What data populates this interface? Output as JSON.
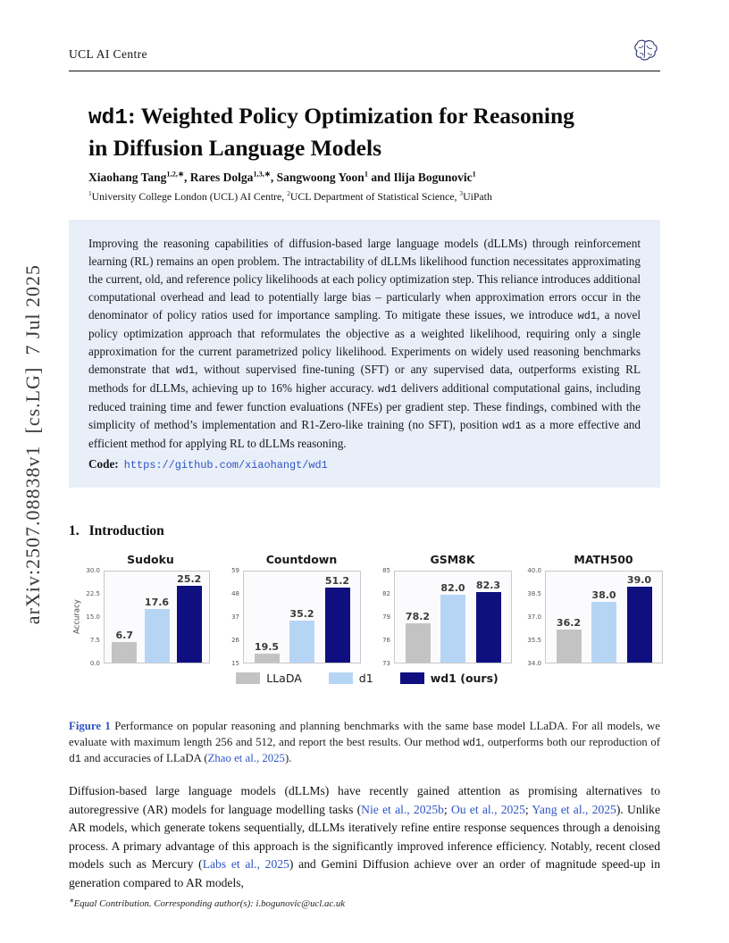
{
  "colors": {
    "link": "#2e54c4",
    "abstract-bg": "#e9eff8",
    "bar-gray": "#c3c3c3",
    "bar-lightblue": "#b6d5f5",
    "bar-navy": "#0f0f80"
  },
  "header": {
    "institute": "UCL AI Centre",
    "logo_icon": "brain-sketch-icon"
  },
  "arxiv": {
    "label": "arXiv:2507.08838v1  [cs.LG]  7 Jul 2025"
  },
  "title": {
    "segments": [
      {
        "text": "wd1",
        "style": "codebold"
      },
      {
        "text": ": Weighted Policy Optimization for Reasoning in Diffusion Language Models",
        "style": "t"
      }
    ]
  },
  "authors": {
    "segments": [
      {
        "text": "Xiaohang Tang",
        "style": "b"
      },
      {
        "text": "1,2,∗",
        "style": "bsup"
      },
      {
        "text": ", ",
        "style": "b"
      },
      {
        "text": "Rares Dolga",
        "style": "b"
      },
      {
        "text": "1,3,∗",
        "style": "bsup"
      },
      {
        "text": ", ",
        "style": "b"
      },
      {
        "text": "Sangwoong Yoon",
        "style": "b"
      },
      {
        "text": "1",
        "style": "bsup"
      },
      {
        "text": " and ",
        "style": "b"
      },
      {
        "text": "Ilija Bogunovic",
        "style": "b"
      },
      {
        "text": "1",
        "style": "bsup"
      }
    ]
  },
  "affiliations": {
    "segments": [
      {
        "text": "1",
        "style": "sup"
      },
      {
        "text": "University College London (UCL) AI Centre, ",
        "style": "t"
      },
      {
        "text": "2",
        "style": "sup"
      },
      {
        "text": "UCL Department of Statistical Science, ",
        "style": "t"
      },
      {
        "text": "3",
        "style": "sup"
      },
      {
        "text": "UiPath",
        "style": "t"
      }
    ]
  },
  "abstract": {
    "segments": [
      {
        "text": "Improving the reasoning capabilities of diffusion-based large language models (dLLMs) through reinforcement learning (RL) remains an open problem. The intractability of dLLMs likelihood function necessitates approximating the current, old, and reference policy likelihoods at each policy optimization step. This reliance introduces additional computational overhead and lead to potentially large bias – particularly when approximation errors occur in the denominator of policy ratios used for importance sampling. To mitigate these issues, we introduce ",
        "style": "t"
      },
      {
        "text": "wd1",
        "style": "code"
      },
      {
        "text": ", a novel policy optimization approach that reformulates the objective as a weighted likelihood, requiring only a single approximation for the current parametrized policy likelihood. Experiments on widely used reasoning benchmarks demonstrate that ",
        "style": "t"
      },
      {
        "text": "wd1",
        "style": "code"
      },
      {
        "text": ", without supervised fine-tuning (SFT) or any supervised data, outperforms existing RL methods for dLLMs, achieving up to 16% higher accuracy. ",
        "style": "t"
      },
      {
        "text": "wd1",
        "style": "code"
      },
      {
        "text": " delivers additional computational gains, including reduced training time and fewer function evaluations (NFEs) per gradient step. These findings, combined with the simplicity of method’s implementation and R1-Zero-like training (no SFT), position ",
        "style": "t"
      },
      {
        "text": "wd1",
        "style": "code"
      },
      {
        "text": " as a more effective and efficient method for applying RL to dLLMs reasoning.",
        "style": "t"
      }
    ],
    "code_label": "Code:",
    "code_url": "https://github.com/xiaohangt/wd1"
  },
  "section": {
    "number": "1.",
    "title": "Introduction"
  },
  "figure": {
    "ylabel": "Accuracy",
    "series_colors": [
      "#c3c3c3",
      "#b6d5f5",
      "#0f0f80"
    ],
    "legend": [
      {
        "label": "LLaDA",
        "color": "#c3c3c3",
        "bold": false
      },
      {
        "label": "d1",
        "color": "#b6d5f5",
        "bold": false
      },
      {
        "label": "wd1 (ours)",
        "color": "#0f0f80",
        "bold": true
      }
    ]
  },
  "chart_data": [
    {
      "type": "bar",
      "title": "Sudoku",
      "categories": [
        "LLaDA",
        "d1",
        "wd1 (ours)"
      ],
      "values": [
        6.7,
        17.6,
        25.2
      ],
      "ylim": [
        0,
        30
      ],
      "yticks": [
        0.0,
        7.5,
        15.0,
        22.5,
        30.0
      ],
      "ytick_decimals": 1,
      "ylabel": "Accuracy",
      "grid": false,
      "legend_position": "bottom"
    },
    {
      "type": "bar",
      "title": "Countdown",
      "categories": [
        "LLaDA",
        "d1",
        "wd1 (ours)"
      ],
      "values": [
        19.5,
        35.2,
        51.2
      ],
      "ylim": [
        15,
        59
      ],
      "yticks": [
        15,
        26,
        37,
        48,
        59
      ],
      "ytick_decimals": 0,
      "grid": false
    },
    {
      "type": "bar",
      "title": "GSM8K",
      "categories": [
        "LLaDA",
        "d1",
        "wd1 (ours)"
      ],
      "values": [
        78.2,
        82.0,
        82.3
      ],
      "ylim": [
        73,
        85
      ],
      "yticks": [
        73,
        76,
        79,
        82,
        85
      ],
      "ytick_decimals": 0,
      "grid": false
    },
    {
      "type": "bar",
      "title": "MATH500",
      "categories": [
        "LLaDA",
        "d1",
        "wd1 (ours)"
      ],
      "values": [
        36.2,
        38.0,
        39.0
      ],
      "ylim": [
        34,
        40
      ],
      "yticks": [
        34.0,
        35.5,
        37.0,
        38.5,
        40.0
      ],
      "ytick_decimals": 1,
      "grid": false
    }
  ],
  "caption": {
    "segments": [
      {
        "text": "Figure 1",
        "style": "figlabel"
      },
      {
        "text": "  Performance on popular reasoning and planning benchmarks with the same base model LLaDA. For all models, we evaluate with maximum length 256 and 512, and report the best results. Our method ",
        "style": "t"
      },
      {
        "text": "wd1",
        "style": "code"
      },
      {
        "text": ", outperforms both our reproduction of ",
        "style": "t"
      },
      {
        "text": "d1",
        "style": "code"
      },
      {
        "text": " and accuracies of LLaDA (",
        "style": "t"
      },
      {
        "text": "Zhao et al., 2025",
        "style": "link"
      },
      {
        "text": ").",
        "style": "t"
      }
    ]
  },
  "body": {
    "segments": [
      {
        "text": "Diffusion-based large language models (dLLMs) have recently gained attention as promising alternatives to autoregressive (AR) models for language modelling tasks (",
        "style": "t"
      },
      {
        "text": "Nie et al., 2025b",
        "style": "link"
      },
      {
        "text": "; ",
        "style": "t"
      },
      {
        "text": "Ou et al., 2025",
        "style": "link"
      },
      {
        "text": "; ",
        "style": "t"
      },
      {
        "text": "Yang et al., 2025",
        "style": "link"
      },
      {
        "text": "). Unlike AR models, which generate tokens sequentially, dLLMs iteratively refine entire response sequences through a denoising process. A primary advantage of this approach is the significantly improved inference efficiency. Notably, recent closed models such as Mercury (",
        "style": "t"
      },
      {
        "text": "Labs et al., 2025",
        "style": "link"
      },
      {
        "text": ") and Gemini Diffusion achieve over an order of magnitude speed-up in generation compared to AR models,",
        "style": "t"
      }
    ]
  },
  "footnote": {
    "marker": "∗",
    "text": "Equal Contribution. Corresponding author(s): i.bogunovic@ucl.ac.uk"
  }
}
